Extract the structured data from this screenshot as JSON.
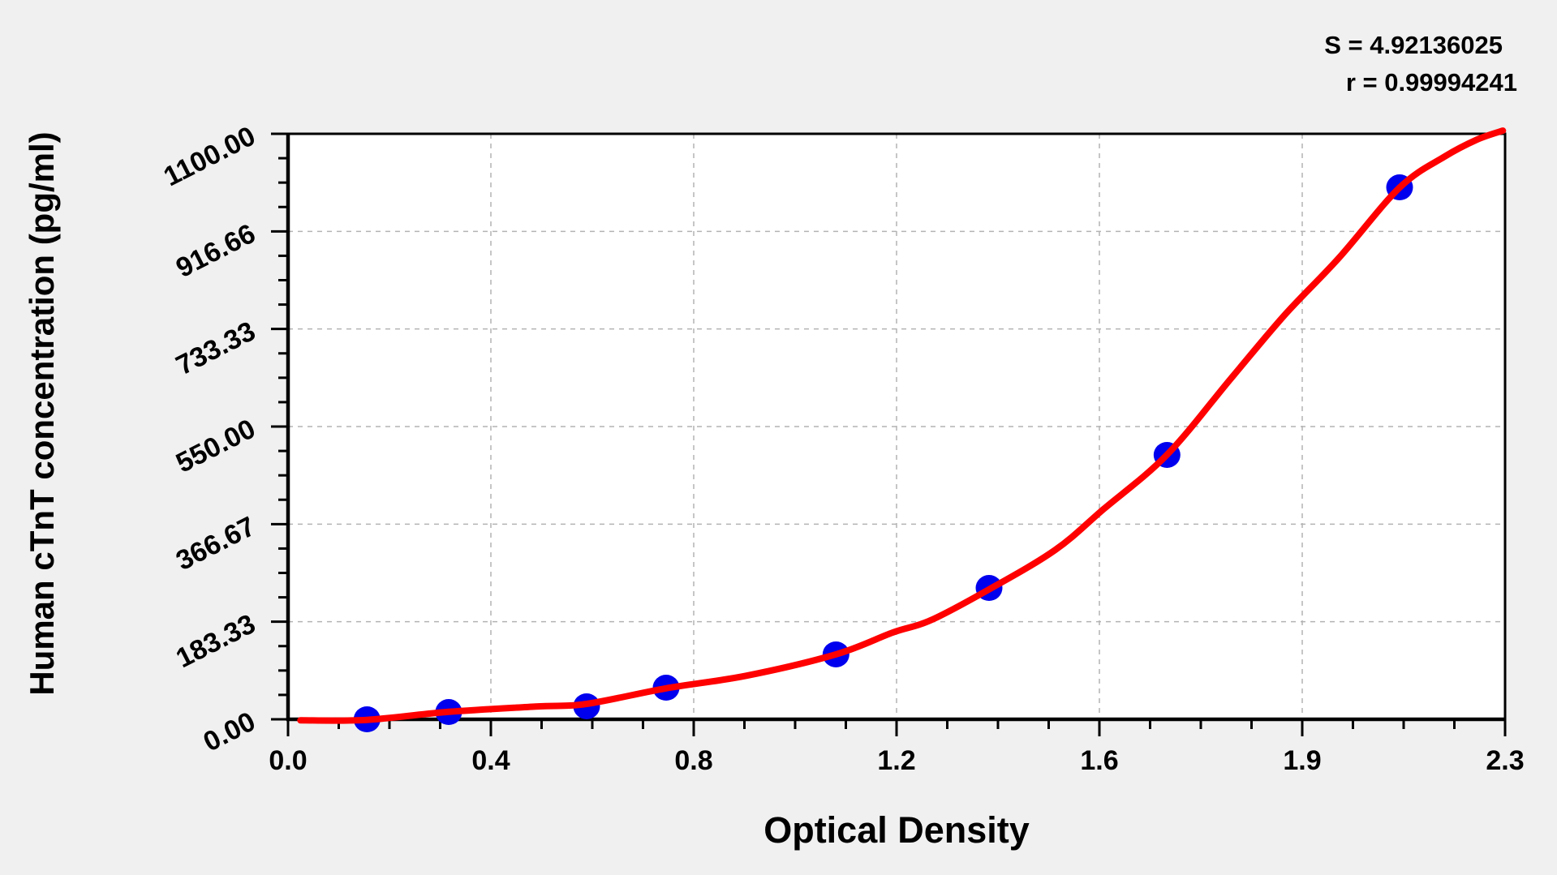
{
  "page": {
    "background": "#f0f0f0",
    "plot_background": "#ffffff"
  },
  "stats": {
    "s_label": "S = 4.92136025",
    "r_label": "r = 0.99994241"
  },
  "chart_data": {
    "type": "scatter",
    "title": "",
    "xlabel": "Optical Density",
    "ylabel": "Human cTnT concentration (pg/ml)",
    "legend": "none",
    "x_axis": {
      "min": 0.05,
      "max": 2.3,
      "tick_values": [
        0.05,
        0.425,
        0.8,
        1.175,
        1.55,
        1.925,
        2.3
      ],
      "tick_labels": [
        "0.0",
        "0.4",
        "0.8",
        "1.2",
        "1.6",
        "1.9",
        "2.3"
      ],
      "minor_ticks_per_interval": 3
    },
    "y_axis": {
      "min": 0,
      "max": 1100,
      "tick_values": [
        0,
        183.33,
        366.67,
        550,
        733.33,
        916.66,
        1100
      ],
      "tick_labels": [
        "0.00",
        "183.33",
        "366.67",
        "550.00",
        "733.33",
        "916.66",
        "1100.00"
      ],
      "minor_ticks_per_interval": 3
    },
    "grid": {
      "show": true,
      "style": "dashed",
      "color": "#b3b3b3"
    },
    "series": [
      {
        "name": "standard-points",
        "type": "scatter",
        "marker": "ellipse",
        "color": "#0000ee",
        "marker_rx": 16.5,
        "marker_ry": 16,
        "points": [
          [
            0.196,
            0
          ],
          [
            0.347,
            13.7
          ],
          [
            0.602,
            24.4
          ],
          [
            0.749,
            59.4
          ],
          [
            1.063,
            121.9
          ],
          [
            1.346,
            246.8
          ],
          [
            1.675,
            496.7
          ],
          [
            2.105,
            999.4
          ]
        ]
      },
      {
        "name": "fitted-curve",
        "type": "line",
        "color": "#ff0000",
        "width": 8,
        "points": [
          [
            0.073,
            -2
          ],
          [
            0.196,
            -1
          ],
          [
            0.347,
            14
          ],
          [
            0.508,
            24
          ],
          [
            0.602,
            29
          ],
          [
            0.748,
            58
          ],
          [
            0.898,
            82
          ],
          [
            1.063,
            122
          ],
          [
            1.168,
            163
          ],
          [
            1.238,
            186
          ],
          [
            1.346,
            244
          ],
          [
            1.468,
            318
          ],
          [
            1.558,
            395
          ],
          [
            1.675,
            497
          ],
          [
            1.793,
            640
          ],
          [
            1.892,
            759
          ],
          [
            1.993,
            867
          ],
          [
            2.105,
            999
          ],
          [
            2.188,
            1057
          ],
          [
            2.248,
            1089
          ],
          [
            2.296,
            1106
          ]
        ]
      }
    ],
    "annotations": {
      "S": 4.92136025,
      "r": 0.99994241
    }
  }
}
